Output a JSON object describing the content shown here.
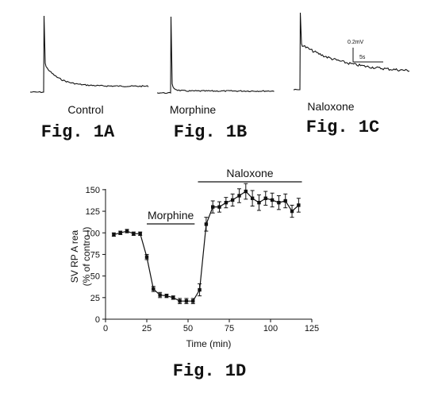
{
  "chart_data": [
    {
      "id": "fig1A",
      "type": "line",
      "title": "Fig. 1A",
      "trace_label": "Control",
      "shape": {
        "peak": 1.0,
        "plateau": 0.22,
        "decay_rate": 0.055,
        "fast_fall": 0.62
      }
    },
    {
      "id": "fig1B",
      "type": "line",
      "title": "Fig. 1B",
      "trace_label": "Morphine",
      "shape": {
        "peak": 1.0,
        "plateau": 0.07,
        "decay_rate": 0.22,
        "fast_fall": 0.88
      }
    },
    {
      "id": "fig1C",
      "type": "line",
      "title": "Fig. 1C",
      "trace_label": "Naloxone",
      "scale_bar": {
        "amplitude_label": "0.2mV",
        "time_label": "5s"
      },
      "shape": {
        "peak": 1.0,
        "plateau": 0.62,
        "decay_rate": 0.018,
        "fast_fall": 0.4
      }
    },
    {
      "id": "fig1D",
      "type": "line",
      "title": "Fig. 1D",
      "xlabel": "Time (min)",
      "ylabel": [
        "SV RP  A rea",
        "(%  of contro l)"
      ],
      "xlim": [
        0,
        125
      ],
      "ylim": [
        0,
        160
      ],
      "xticks": [
        0,
        25,
        50,
        75,
        100,
        125
      ],
      "yticks": [
        0,
        25,
        50,
        75,
        100,
        125,
        150
      ],
      "periods": [
        {
          "label": "Morphine",
          "start": 25,
          "end": 54
        },
        {
          "label": "Naloxone",
          "start": 56,
          "end": 119
        }
      ],
      "series": [
        {
          "x": [
            5,
            9,
            13,
            17,
            21,
            25,
            29,
            33,
            37,
            41,
            45,
            49,
            53,
            57,
            61,
            65,
            69,
            73,
            77,
            81,
            85,
            89,
            93,
            97,
            101,
            105,
            109,
            113,
            117
          ],
          "y": [
            98,
            100,
            102,
            99,
            99,
            72,
            35,
            28,
            27,
            25,
            21,
            21,
            21,
            34,
            110,
            130,
            130,
            135,
            138,
            143,
            148,
            140,
            135,
            140,
            138,
            135,
            137,
            125,
            132
          ],
          "err": [
            2,
            2,
            2,
            2,
            2,
            3,
            3,
            3,
            2,
            2,
            3,
            3,
            3,
            7,
            8,
            7,
            6,
            6,
            7,
            8,
            9,
            9,
            9,
            8,
            8,
            8,
            8,
            7,
            8
          ]
        }
      ]
    }
  ]
}
